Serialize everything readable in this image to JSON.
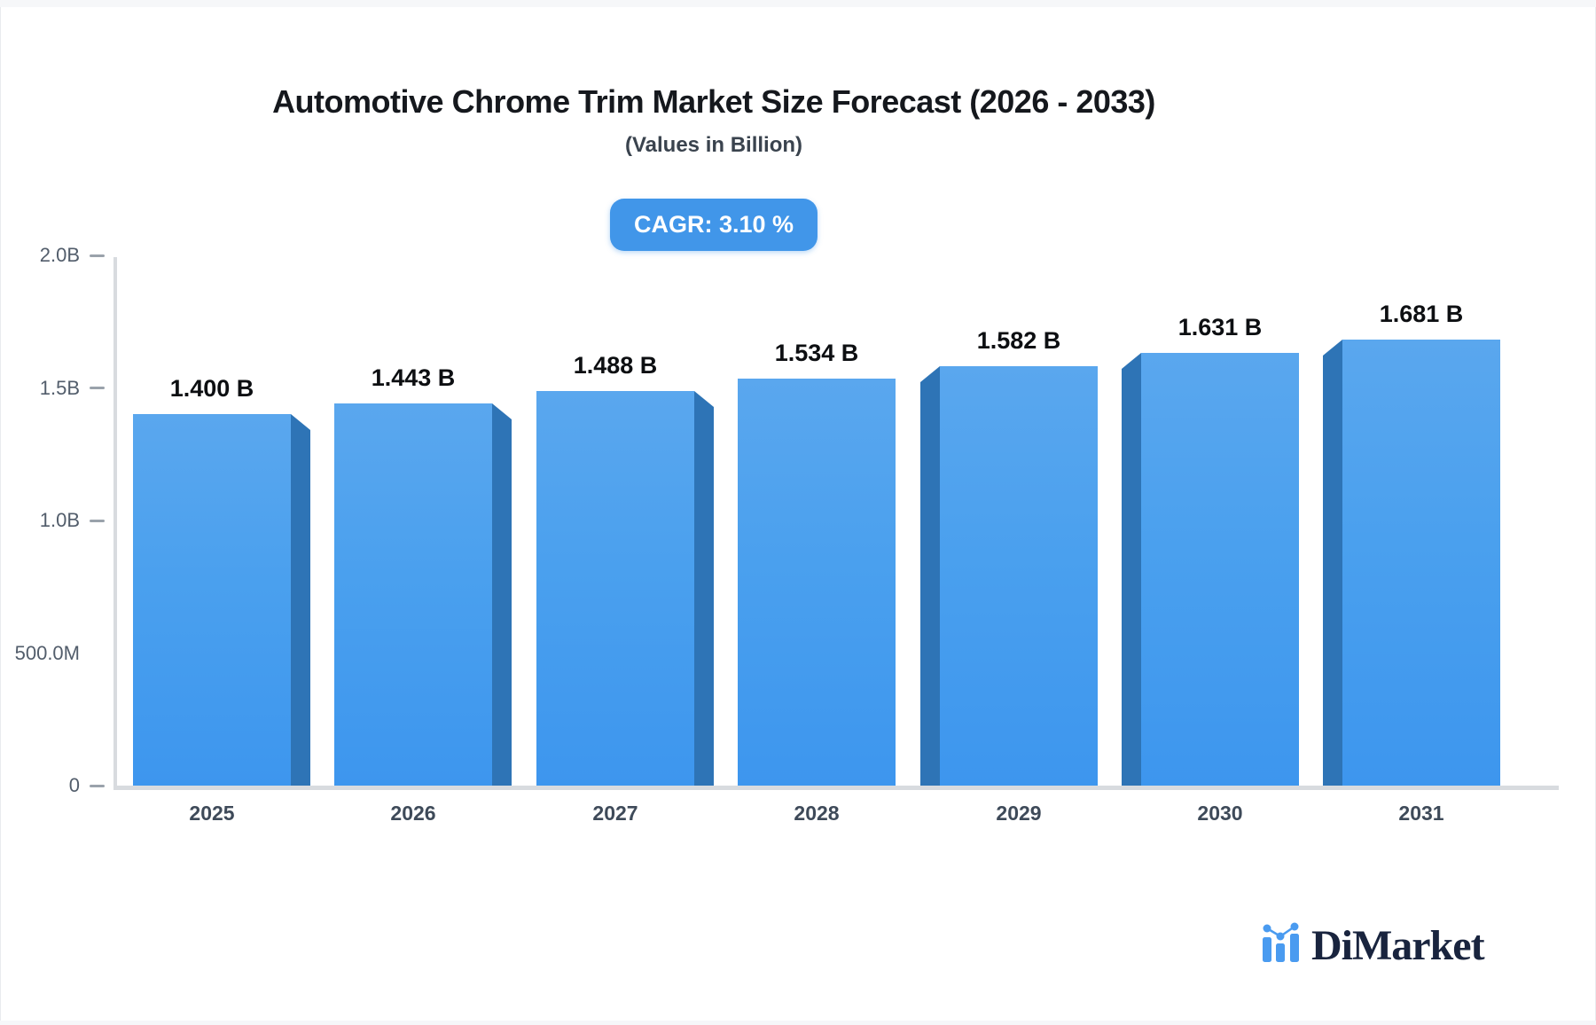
{
  "page": {
    "background": "#f6f7f9",
    "card_background": "#ffffff"
  },
  "header": {
    "title": "Automotive Chrome Trim Market Size Forecast (2026 - 2033)",
    "subtitle": "(Values in Billion)",
    "cagr_badge": "CAGR: 3.10 %",
    "badge_color": "#4196e9"
  },
  "chart_data": {
    "type": "bar",
    "title": "Automotive Chrome Trim Market Size Forecast (2026 - 2033)",
    "subtitle": "(Values in Billion)",
    "annotation": "CAGR: 3.10 %",
    "categories": [
      "2025",
      "2026",
      "2027",
      "2028",
      "2029",
      "2030",
      "2031"
    ],
    "values": [
      1.4,
      1.443,
      1.488,
      1.534,
      1.582,
      1.631,
      1.681
    ],
    "value_labels": [
      "1.400 B",
      "1.443 B",
      "1.488 B",
      "1.534 B",
      "1.582 B",
      "1.631 B",
      "1.681 B"
    ],
    "unit": "Billion",
    "xlabel": "",
    "ylabel": "",
    "ylim": [
      0,
      2.0
    ],
    "y_ticks": [
      {
        "label": "2.0B",
        "value": 2.0,
        "dash": true
      },
      {
        "label": "1.5B",
        "value": 1.5,
        "dash": true
      },
      {
        "label": "1.0B",
        "value": 1.0,
        "dash": true
      },
      {
        "label": "500.0M",
        "value": 0.5,
        "dash": false
      },
      {
        "label": "0",
        "value": 0.0,
        "dash": true
      }
    ],
    "grid": false,
    "legend": false,
    "style_3d": true,
    "colors": {
      "bar_top": "#5aa7ee",
      "bar_bottom": "#3d96ee",
      "bar_side": "#2e74b6",
      "axis": "#d8dbdf",
      "tick_text": "#525d6b",
      "category_text": "#3e4a59",
      "value_text": "#0d0f12"
    }
  },
  "branding": {
    "logo_text": "DiMarket",
    "logo_icon": "bar-chart-trend-icon",
    "text_color": "#19243e",
    "icon_color": "#4a9bf0"
  }
}
